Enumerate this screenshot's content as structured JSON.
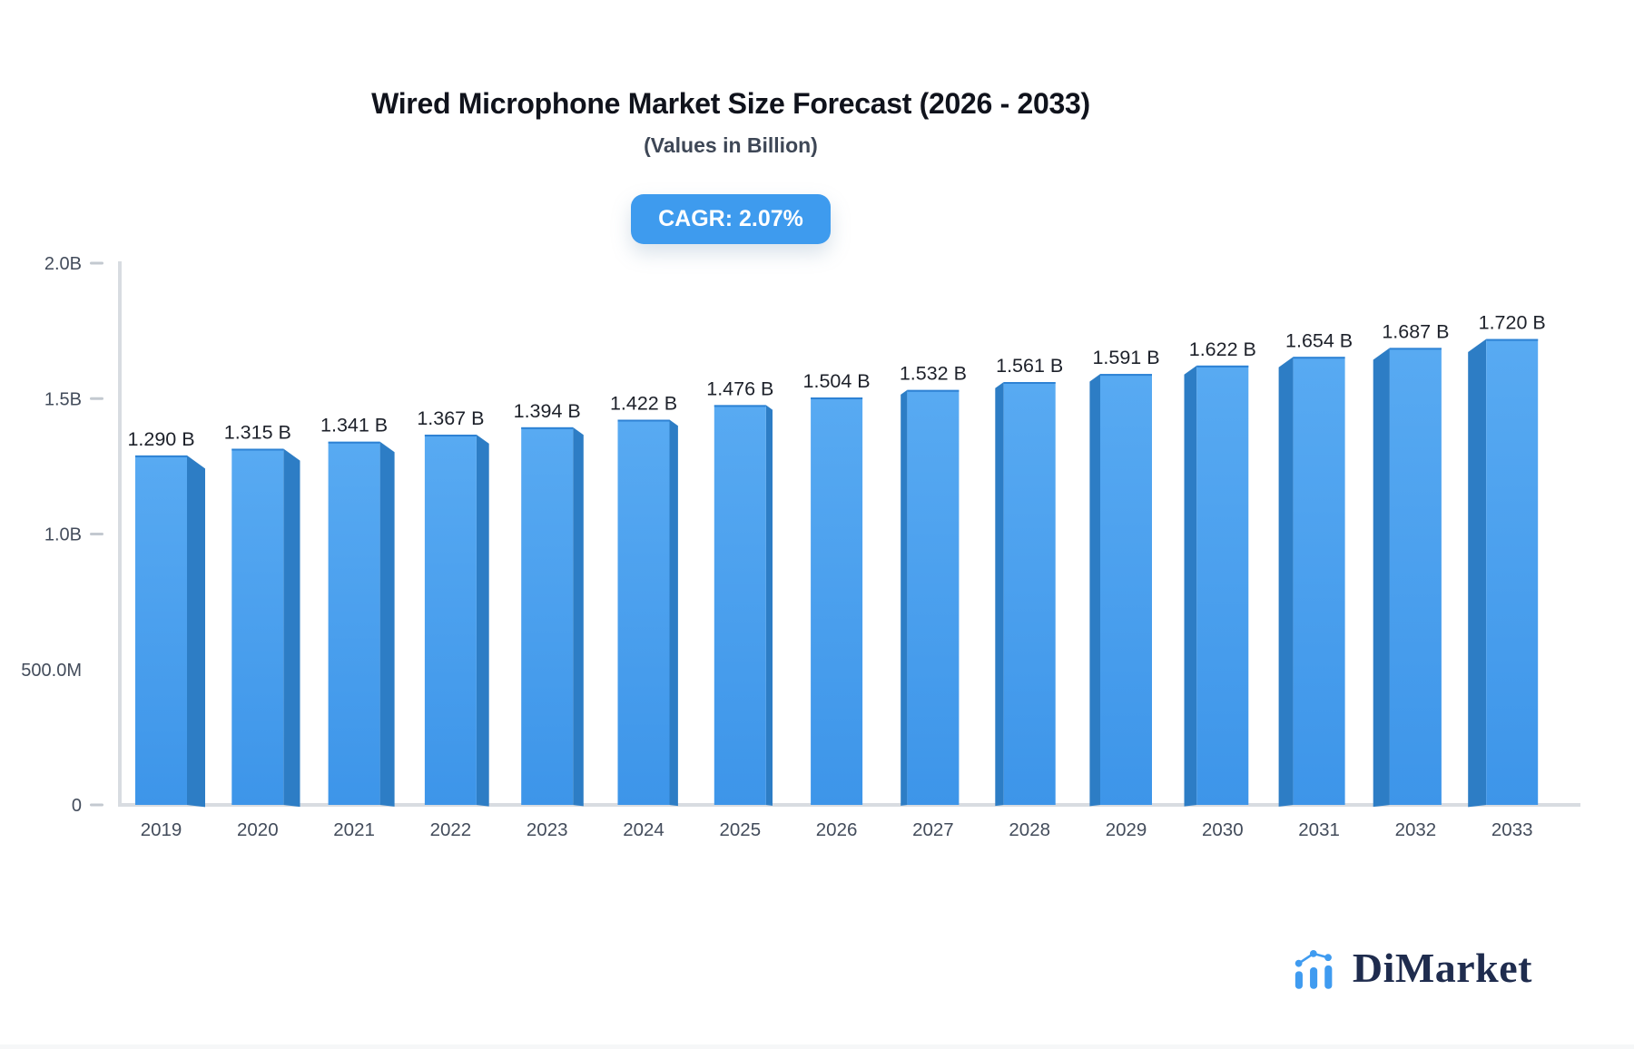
{
  "header": {
    "title": "Wired Microphone Market Size Forecast (2026 - 2033)",
    "subtitle": "(Values in Billion)"
  },
  "badge": {
    "label": "CAGR: 2.07%",
    "bg": "#3e9bee",
    "text_color": "#ffffff"
  },
  "chart_data": {
    "type": "bar",
    "title": "Wired Microphone Market Size Forecast (2026 - 2033)",
    "subtitle": "(Values in Billion)",
    "unit": "Billion",
    "categories": [
      "2019",
      "2020",
      "2021",
      "2022",
      "2023",
      "2024",
      "2025",
      "2026",
      "2027",
      "2028",
      "2029",
      "2030",
      "2031",
      "2032",
      "2033"
    ],
    "values": [
      1.29,
      1.315,
      1.341,
      1.367,
      1.394,
      1.422,
      1.476,
      1.504,
      1.532,
      1.561,
      1.591,
      1.622,
      1.654,
      1.687,
      1.72
    ],
    "value_labels": [
      "1.290 B",
      "1.315 B",
      "1.341 B",
      "1.367 B",
      "1.394 B",
      "1.422 B",
      "1.476 B",
      "1.504 B",
      "1.532 B",
      "1.561 B",
      "1.591 B",
      "1.622 B",
      "1.654 B",
      "1.687 B",
      "1.720 B"
    ],
    "y_ticks": [
      {
        "label": "2.0B",
        "value": 2.0,
        "dash": true
      },
      {
        "label": "1.5B",
        "value": 1.5,
        "dash": true
      },
      {
        "label": "1.0B",
        "value": 1.0,
        "dash": true
      },
      {
        "label": "500.0M",
        "value": 0.5,
        "dash": false
      },
      {
        "label": "0",
        "value": 0.0,
        "dash": true
      }
    ],
    "ylim": [
      0,
      2.0
    ],
    "grid": false,
    "legend": false,
    "cagr": "2.07%",
    "colors": {
      "bar_front_top": "#58aaf2",
      "bar_front_bottom": "#3d95e9",
      "bar_side": "#2d7dc5",
      "bar_top_edge": "#2e82d4",
      "axis": "#d8dce1",
      "tick_dash": "#c3c9d0",
      "axis_label": "#434c5b",
      "value_label": "#1d212a"
    }
  },
  "logo": {
    "text": "DiMarket",
    "icon": "mini-bar-chart-icon",
    "text_color": "#1f2c4e",
    "accent": "#3f9bf0"
  }
}
